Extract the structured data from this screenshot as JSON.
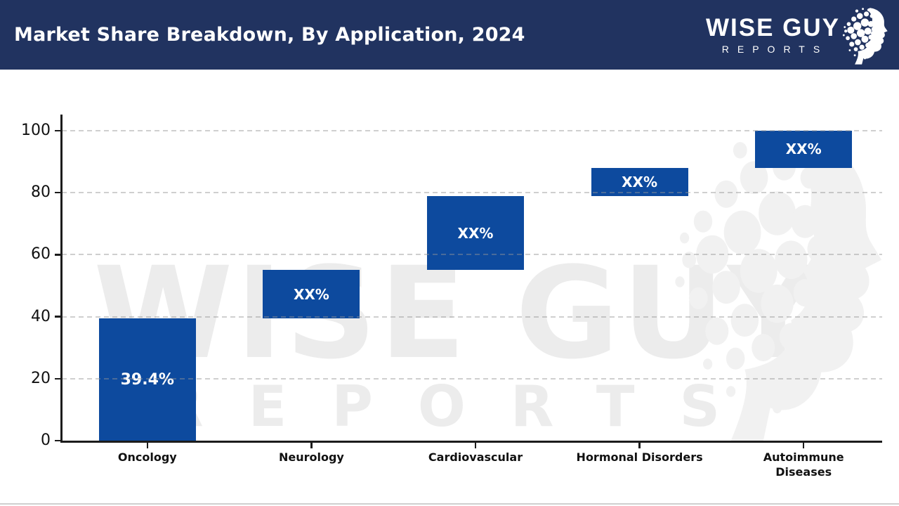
{
  "header": {
    "title": "Market Share Breakdown, By Application, 2024",
    "logo": {
      "name_line": "WISE GUY",
      "sub_line": "REPORTS"
    }
  },
  "watermark": {
    "line1": "WISE GUY",
    "line2": "REPORTS"
  },
  "colors": {
    "header_bg": "#213360",
    "header_text": "#ffffff",
    "bar_fill": "#0D4A9E",
    "bar_label_text": "#ffffff",
    "axis": "#1c1c1c",
    "tick_label": "#111111",
    "gridline": "#d4d4d4",
    "watermark_text": "#ececec",
    "watermark_face": "#f1f1f1",
    "bottom_rule": "#cfcfcf"
  },
  "chart_data": {
    "type": "bar",
    "subtype": "floating-waterfall",
    "title": "Market Share Breakdown, By Application, 2024",
    "categories": [
      "Oncology",
      "Neurology",
      "Cardiovascular",
      "Hormonal Disorders",
      "Autoimmune Diseases"
    ],
    "category_wrap": [
      false,
      false,
      false,
      false,
      true
    ],
    "series": [
      {
        "name": "Market share (%)",
        "segments": [
          {
            "category": "Oncology",
            "start": 0,
            "end": 39.4,
            "label": "39.4%"
          },
          {
            "category": "Neurology",
            "start": 39.4,
            "end": 55,
            "label": "XX%"
          },
          {
            "category": "Cardiovascular",
            "start": 55,
            "end": 79,
            "label": "XX%"
          },
          {
            "category": "Hormonal Disorders",
            "start": 79,
            "end": 88,
            "label": "XX%"
          },
          {
            "category": "Autoimmune Diseases",
            "start": 88,
            "end": 100,
            "label": "XX%"
          }
        ]
      }
    ],
    "xlabel": "",
    "ylabel": "",
    "ylim": [
      0,
      100
    ],
    "yticks": [
      0,
      20,
      40,
      60,
      80,
      100
    ],
    "grid": "horizontal-dashed",
    "grid_above_bars": true,
    "legend": "none"
  }
}
